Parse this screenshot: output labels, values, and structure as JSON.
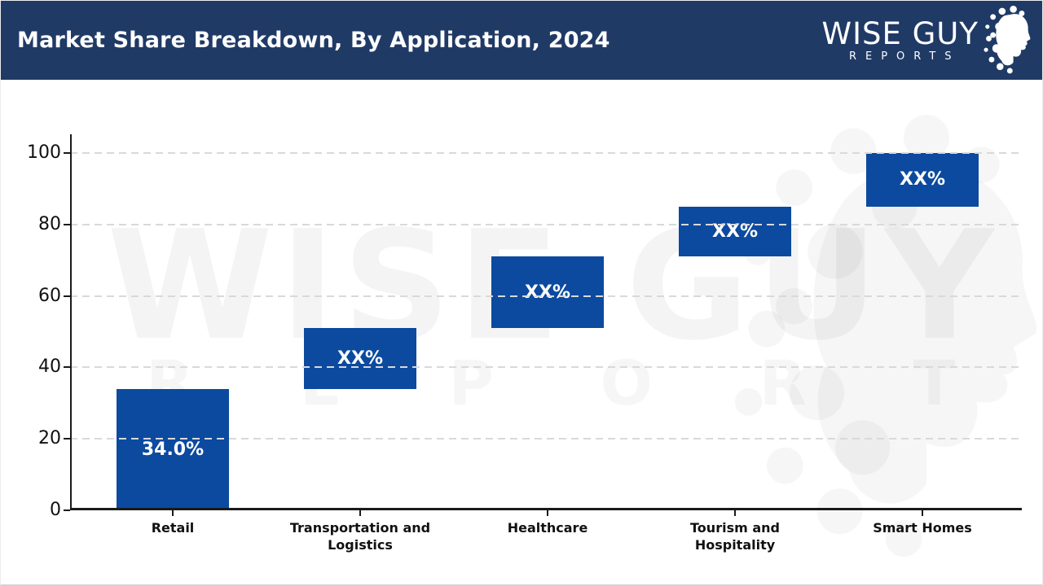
{
  "header": {
    "title": "Market Share Breakdown, By Application, 2024",
    "bg_color": "#203A66",
    "logo": {
      "line1": "WISE GUY",
      "line2": "REPORTS"
    }
  },
  "watermark": {
    "line1": "WISE GUY",
    "line2": "R E P O R T S"
  },
  "chart_data": {
    "type": "bar",
    "subtype": "waterfall-floating-bars",
    "title": "Market Share Breakdown, By Application, 2024",
    "categories": [
      "Retail",
      "Transportation and\nLogistics",
      "Healthcare",
      "Tourism and\nHospitality",
      "Smart Homes"
    ],
    "bars": [
      {
        "category": "Retail",
        "start": 0,
        "end": 34,
        "label": "34.0%"
      },
      {
        "category": "Transportation and Logistics",
        "start": 34,
        "end": 51,
        "label": "XX%"
      },
      {
        "category": "Healthcare",
        "start": 51,
        "end": 71,
        "label": "XX%"
      },
      {
        "category": "Tourism and Hospitality",
        "start": 71,
        "end": 85,
        "label": "XX%"
      },
      {
        "category": "Smart Homes",
        "start": 85,
        "end": 100,
        "label": "XX%"
      }
    ],
    "ylim": [
      0,
      100
    ],
    "yticks": [
      0,
      20,
      40,
      60,
      80,
      100
    ],
    "grid": {
      "horizontal": true,
      "style": "dashed",
      "color": "#d9d9d9"
    },
    "bar_color": "#0B4A9F",
    "bar_label_color": "#ffffff",
    "legend": "none"
  }
}
